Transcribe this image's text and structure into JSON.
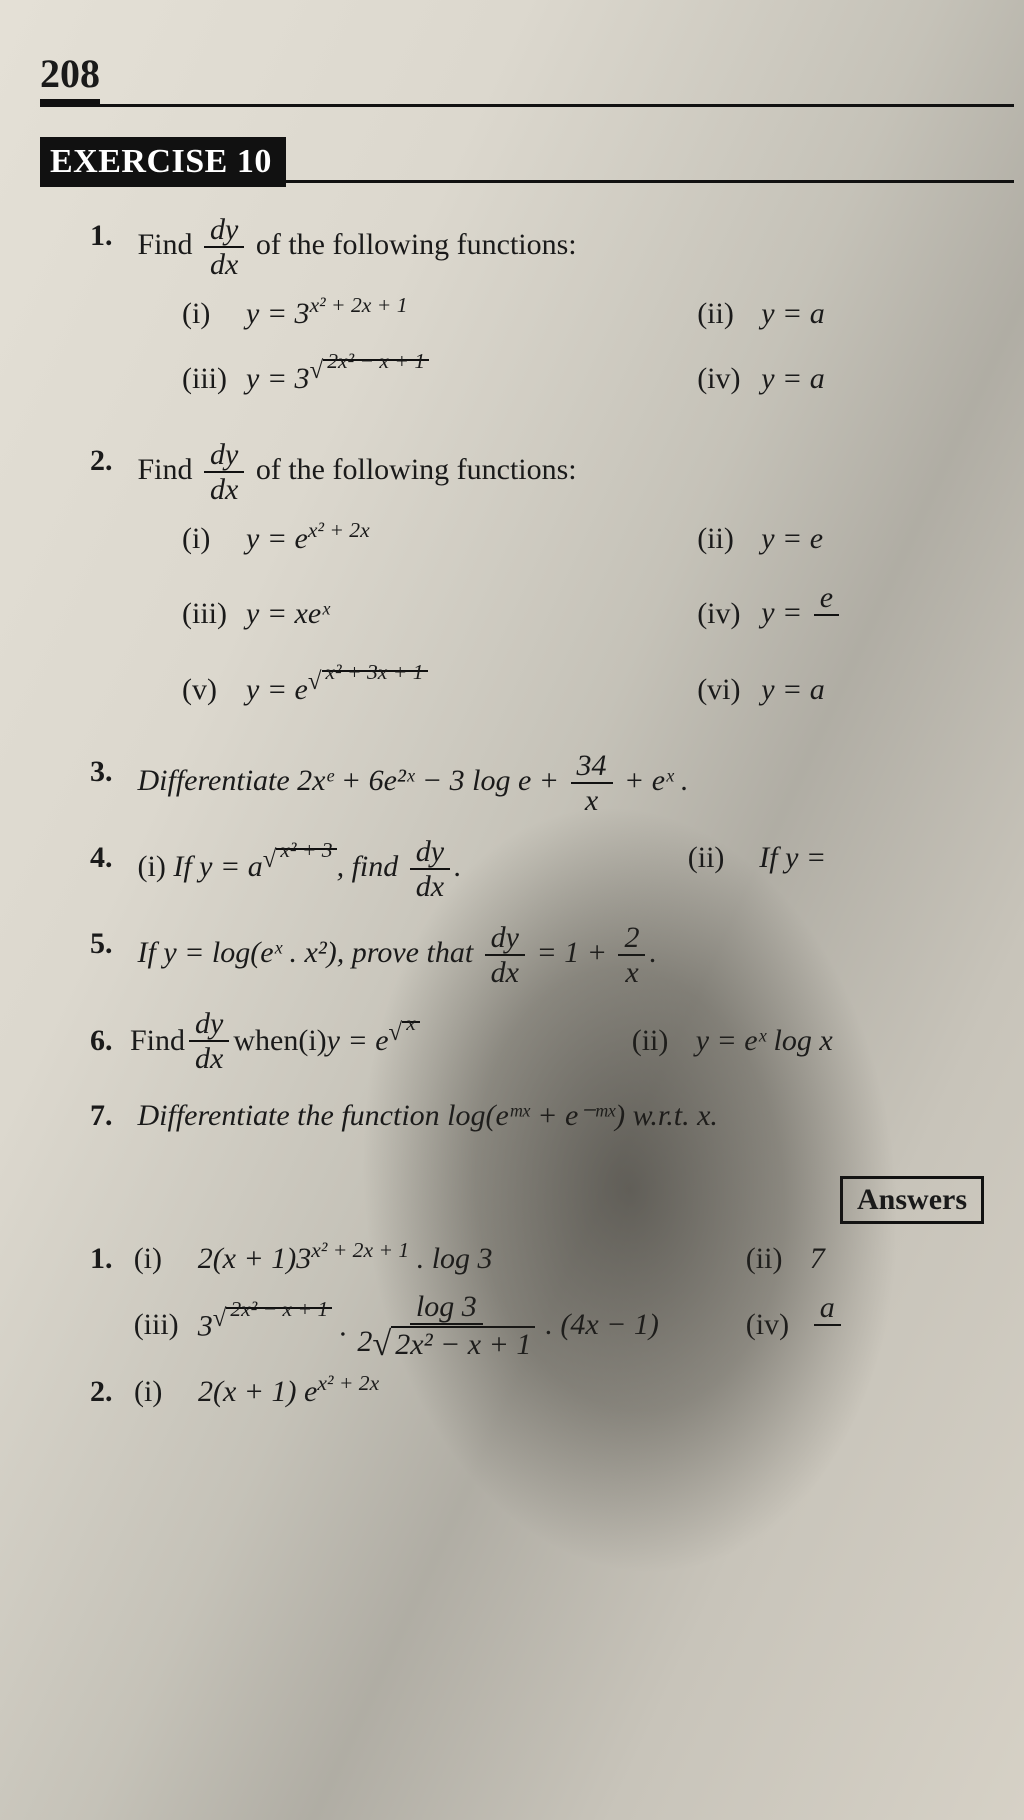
{
  "page_number": "208",
  "exercise_title": "EXERCISE 10",
  "dydx_phrase": "of the following functions:",
  "find_word": "Find",
  "q1": {
    "num": "1.",
    "i_label": "(i)",
    "i_expr_pre": "y = 3",
    "i_expr_sup": "x² + 2x + 1",
    "ii_label": "(ii)",
    "ii_expr": "y = a",
    "iii_label": "(iii)",
    "iii_expr_pre": "y = 3",
    "iii_sqrt": "2x² − x + 1",
    "iv_label": "(iv)",
    "iv_expr": "y = a"
  },
  "q2": {
    "num": "2.",
    "i_label": "(i)",
    "i_pre": "y = e",
    "i_sup": "x² + 2x",
    "ii_label": "(ii)",
    "ii_expr": "y = e",
    "iii_label": "(iii)",
    "iii_expr": "y = xeˣ",
    "iv_label": "(iv)",
    "iv_pre": "y = ",
    "iv_num": "e",
    "v_label": "(v)",
    "v_pre": "y = e",
    "v_sqrt": "x² + 3x + 1",
    "vi_label": "(vi)",
    "vi_expr": "y = a"
  },
  "q3": {
    "num": "3.",
    "text_pre": "Differentiate 2xᵉ + 6e²ˣ − 3 log e + ",
    "frac_n": "34",
    "frac_d": "x",
    "text_post": " + eˣ ."
  },
  "q4": {
    "num": "4.",
    "i_label": "(i)",
    "i_text_pre": "If y = a",
    "i_sqrt": "x² + 3",
    "i_text_post": ", find ",
    "ii_label": "(ii)",
    "ii_text": "If y ="
  },
  "q5": {
    "num": "5.",
    "text_pre": "If y = log(eˣ . x²), prove that ",
    "eq": " = 1 + ",
    "frac2_n": "2",
    "frac2_d": "x",
    "dot": "."
  },
  "q6": {
    "num": "6.",
    "text_pre": "Find ",
    "when": " when ",
    "i_label": "(i)",
    "i_pre": "y = e",
    "i_sqrt": "x",
    "ii_label": "(ii)",
    "ii_expr": "y = eˣ log x"
  },
  "q7": {
    "num": "7.",
    "text": "Differentiate the function log(eᵐˣ + e⁻ᵐˣ) w.r.t. x."
  },
  "answers_label": "Answers",
  "ans1": {
    "num": "1.",
    "i_label": "(i)",
    "i_pre": "2(x + 1)3",
    "i_sup": "x² + 2x + 1",
    "i_post": " . log 3",
    "ii_label": "(ii)",
    "ii_text": "7",
    "iii_label": "(iii)",
    "iii_pre": "3",
    "iii_sqrt_sup": "2x² − x + 1",
    "iii_dot": " . ",
    "iii_frac_n": "log 3",
    "iii_frac_d_pre": "2",
    "iii_frac_d_sqrt": "2x² − x + 1",
    "iii_post": " . (4x − 1)",
    "iv_label": "(iv)",
    "iv_text": "a"
  },
  "ans2": {
    "num": "2.",
    "i_label": "(i)",
    "i_pre": "2(x + 1) e",
    "i_sup": "x² + 2x"
  },
  "dy": "dy",
  "dx": "dx"
}
